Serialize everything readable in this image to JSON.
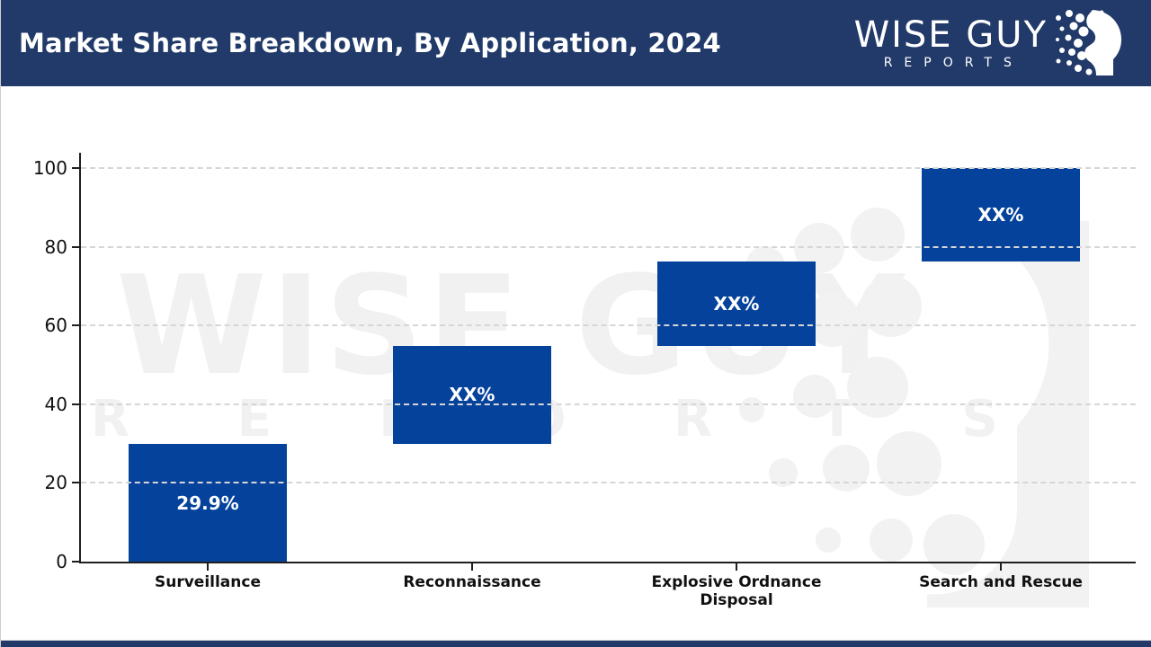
{
  "header": {
    "title": "Market Share Breakdown, By Application, 2024",
    "bg_color": "#213a69",
    "logo": {
      "line1": "WISE GUY",
      "line2": "REPORTS"
    }
  },
  "watermark": {
    "line1": "WISE GUY",
    "line2": "R E P O R T S"
  },
  "chart_data": {
    "type": "bar",
    "subtype": "waterfall-floating-segments",
    "title": "Market Share Breakdown, By Application, 2024",
    "categories": [
      "Surveillance",
      "Reconnaissance",
      "Explosive Ordnance Disposal",
      "Search and Rescue"
    ],
    "segments": [
      {
        "category": "Surveillance",
        "start": 0,
        "end": 29.9,
        "label": "29.9%"
      },
      {
        "category": "Reconnaissance",
        "start": 29.9,
        "end": 54.8,
        "label": "XX%"
      },
      {
        "category": "Explosive Ordnance Disposal",
        "start": 54.8,
        "end": 76.3,
        "label": "XX%"
      },
      {
        "category": "Search and Rescue",
        "start": 76.3,
        "end": 100,
        "label": "XX%"
      }
    ],
    "yticks": [
      0,
      20,
      40,
      60,
      80,
      100
    ],
    "ylim": [
      0,
      104
    ],
    "xlabel": "",
    "ylabel": "",
    "grid": "horizontal dashed, drawn over bars",
    "legend": "none",
    "bar_color": "#05429b",
    "axis_color": "#1f1f1f",
    "grid_color": "#d6d6d6"
  },
  "footer": {
    "bg_color": "#213a69"
  }
}
